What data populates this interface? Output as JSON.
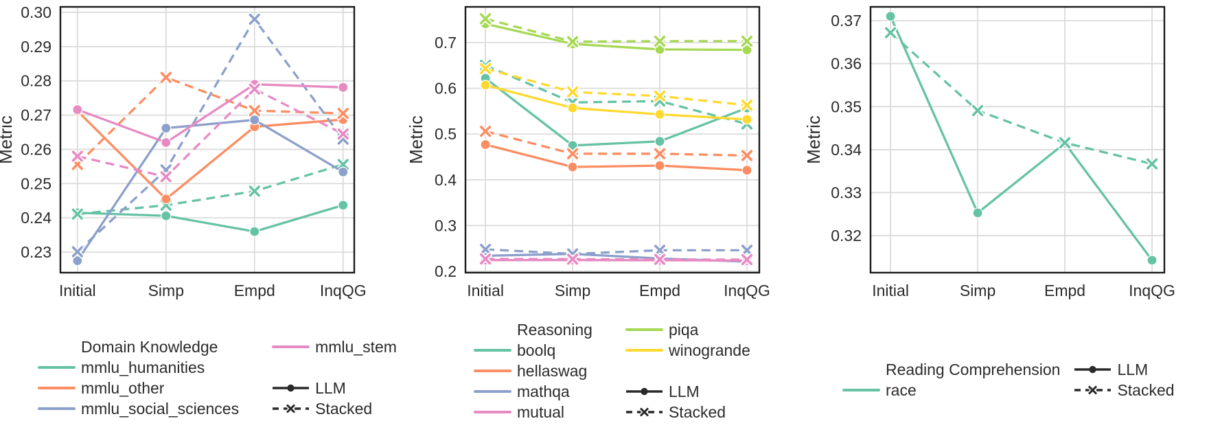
{
  "figure": {
    "ylabel": "Metric",
    "x_categories": [
      "Initial",
      "Simp",
      "Empd",
      "InqQG"
    ],
    "variants": {
      "llm": {
        "label": "LLM",
        "line": "solid",
        "marker": "circle"
      },
      "stacked": {
        "label": "Stacked",
        "line": "dashed",
        "marker": "x"
      }
    },
    "style": {
      "text_color": "#2b2b2b",
      "grid_color": "#d9d9d9",
      "spine_color": "#1a1a1a",
      "legend_marker_color": "#2a2a2a"
    }
  },
  "chart_data": [
    {
      "type": "line",
      "title": "Domain Knowledge",
      "ylabel": "Metric",
      "categories": [
        "Initial",
        "Simp",
        "Empd",
        "InqQG"
      ],
      "yticks": [
        0.23,
        0.24,
        0.25,
        0.26,
        0.27,
        0.28,
        0.29,
        0.3
      ],
      "ytick_labels": [
        "0.23",
        "0.24",
        "0.25",
        "0.26",
        "0.27",
        "0.28",
        "0.29",
        "0.30"
      ],
      "ylim": [
        0.224,
        0.3016
      ],
      "grid": true,
      "legend_position": "below",
      "series": [
        {
          "name": "mmlu_humanities",
          "color": "#66c2a5",
          "llm": [
            0.2415,
            0.2406,
            0.236,
            0.2437
          ],
          "stacked": [
            0.2411,
            0.2437,
            0.2478,
            0.2556
          ]
        },
        {
          "name": "mmlu_other",
          "color": "#fc8d62",
          "llm": [
            0.2712,
            0.2455,
            0.2666,
            0.2687
          ],
          "stacked": [
            0.2556,
            0.281,
            0.2713,
            0.2705
          ]
        },
        {
          "name": "mmlu_social_sciences",
          "color": "#8da0cb",
          "llm": [
            0.2275,
            0.2662,
            0.2686,
            0.2534
          ],
          "stacked": [
            0.2301,
            0.254,
            0.298,
            0.263
          ]
        },
        {
          "name": "mmlu_stem",
          "color": "#e78ac3",
          "llm": [
            0.2716,
            0.262,
            0.279,
            0.2781
          ],
          "stacked": [
            0.258,
            0.252,
            0.2776,
            0.2645
          ]
        }
      ],
      "legend": {
        "title": "Domain Knowledge",
        "left": [
          "mmlu_humanities",
          "mmlu_other",
          "mmlu_social_sciences"
        ],
        "right": [
          "mmlu_stem"
        ]
      }
    },
    {
      "type": "line",
      "title": "Reasoning",
      "ylabel": "Metric",
      "categories": [
        "Initial",
        "Simp",
        "Empd",
        "InqQG"
      ],
      "yticks": [
        0.2,
        0.3,
        0.4,
        0.5,
        0.6,
        0.7
      ],
      "ytick_labels": [
        "0.2",
        "0.3",
        "0.4",
        "0.5",
        "0.6",
        "0.7"
      ],
      "ylim": [
        0.197,
        0.778
      ],
      "grid": true,
      "legend_position": "below",
      "series": [
        {
          "name": "boolq",
          "color": "#66c2a5",
          "llm": [
            0.622,
            0.475,
            0.484,
            0.557
          ],
          "stacked": [
            0.65,
            0.569,
            0.572,
            0.522
          ]
        },
        {
          "name": "hellaswag",
          "color": "#fc8d62",
          "llm": [
            0.477,
            0.428,
            0.431,
            0.421
          ],
          "stacked": [
            0.506,
            0.457,
            0.457,
            0.453
          ]
        },
        {
          "name": "mathqa",
          "color": "#8da0cb",
          "llm": [
            0.234,
            0.238,
            0.228,
            0.221
          ],
          "stacked": [
            0.248,
            0.238,
            0.246,
            0.246
          ]
        },
        {
          "name": "mutual",
          "color": "#e78ac3",
          "llm": [
            0.2245,
            0.2245,
            0.224,
            0.2235
          ],
          "stacked": [
            0.227,
            0.2265,
            0.226,
            0.2255
          ]
        },
        {
          "name": "piqa",
          "color": "#a6d854",
          "llm": [
            0.741,
            0.697,
            0.685,
            0.684
          ],
          "stacked": [
            0.752,
            0.702,
            0.703,
            0.703
          ]
        },
        {
          "name": "winogrande",
          "color": "#ffd92f",
          "llm": [
            0.607,
            0.557,
            0.543,
            0.532
          ],
          "stacked": [
            0.643,
            0.592,
            0.583,
            0.563
          ]
        }
      ],
      "legend": {
        "title": "Reasoning",
        "left": [
          "boolq",
          "hellaswag",
          "mathqa",
          "mutual"
        ],
        "right": [
          "piqa",
          "winogrande"
        ]
      }
    },
    {
      "type": "line",
      "title": "Reading Comprehension",
      "ylabel": "Metric",
      "categories": [
        "Initial",
        "Simp",
        "Empd",
        "InqQG"
      ],
      "yticks": [
        0.32,
        0.33,
        0.34,
        0.35,
        0.36,
        0.37
      ],
      "ytick_labels": [
        "0.32",
        "0.33",
        "0.34",
        "0.35",
        "0.36",
        "0.37"
      ],
      "ylim": [
        0.3114,
        0.3732
      ],
      "grid": true,
      "legend_position": "below",
      "series": [
        {
          "name": "race",
          "color": "#66c2a5",
          "llm": [
            0.371,
            0.3253,
            0.3415,
            0.3143
          ],
          "stacked": [
            0.3672,
            0.3491,
            0.3416,
            0.3367
          ]
        }
      ],
      "legend": {
        "title": "Reading Comprehension",
        "left": [
          "race"
        ],
        "right": []
      }
    }
  ]
}
